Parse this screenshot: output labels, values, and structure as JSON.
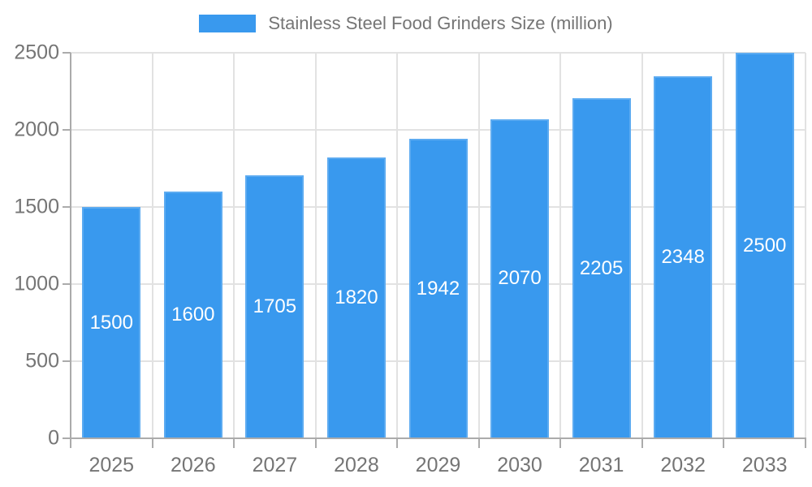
{
  "legend": {
    "label": "Stainless Steel Food Grinders Size (million)"
  },
  "colors": {
    "bar": "#3999EE",
    "bar_label_text": "#FFFFFF",
    "axis_text": "#757575",
    "grid_line": "#E2E2E2",
    "axis_line": "#ABABAB"
  },
  "chart_data": {
    "type": "bar",
    "title": "Stainless Steel Food Grinders Size (million)",
    "categories": [
      "2025",
      "2026",
      "2027",
      "2028",
      "2029",
      "2030",
      "2031",
      "2032",
      "2033"
    ],
    "values": [
      1500,
      1600,
      1705,
      1820,
      1942,
      2070,
      2205,
      2348,
      2500
    ],
    "bar_labels": [
      "1500",
      "1600",
      "1705",
      "1820",
      "1942",
      "2070",
      "2205",
      "2348",
      "2500"
    ],
    "xlabel": "",
    "ylabel": "",
    "ylim": [
      0,
      2500
    ],
    "yticks": [
      0,
      500,
      1000,
      1500,
      2000,
      2500
    ],
    "grid": true,
    "legend_position": "top",
    "bar_value_labels_visible": true,
    "bar_value_label_position": "center"
  }
}
